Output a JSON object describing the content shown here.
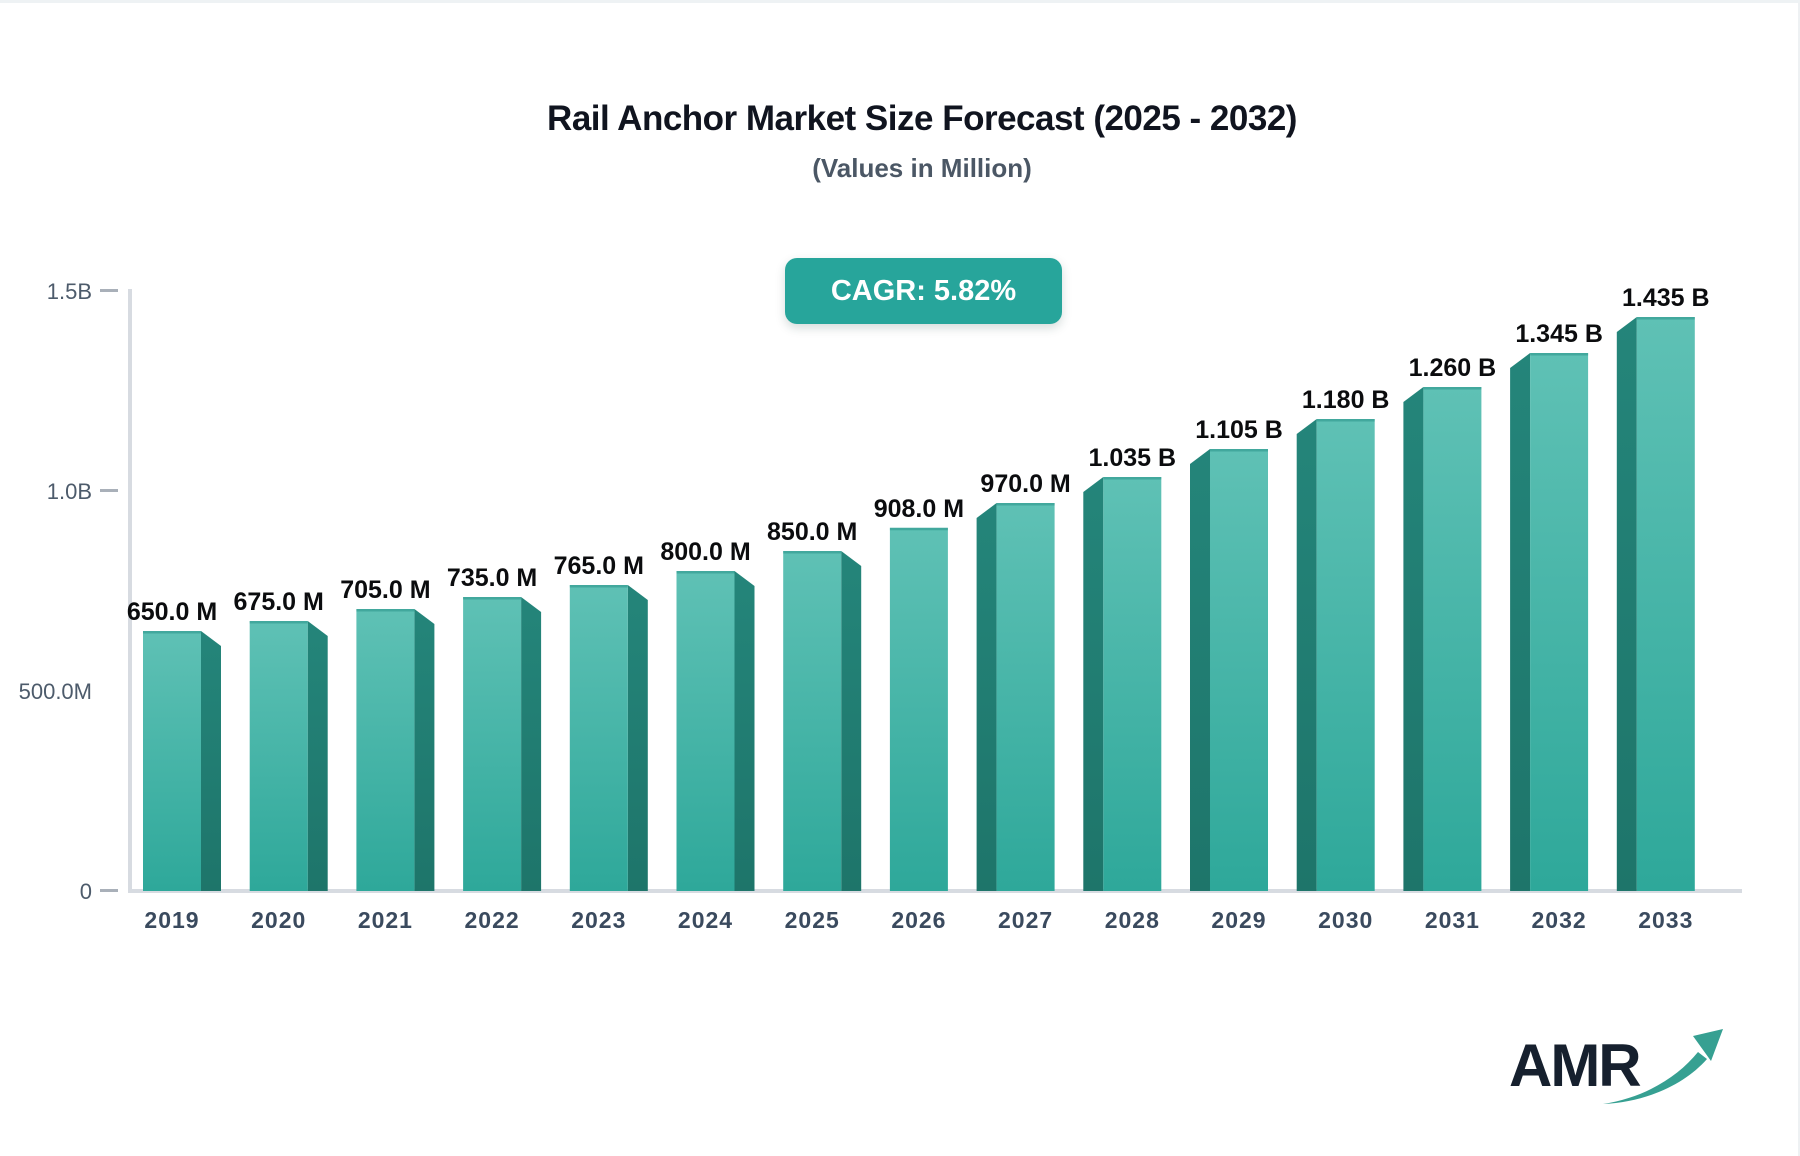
{
  "header": {
    "title": "Rail Anchor Market Size Forecast (2025 - 2032)",
    "subtitle": "(Values in Million)",
    "cagr_label": "CAGR: 5.82%"
  },
  "logo": {
    "text": "AMR"
  },
  "colors": {
    "bar_front_top": "#5fc1b5",
    "bar_front_bottom": "#2ea89a",
    "bar_side_top": "#24857a",
    "bar_side_bottom": "#1e756a",
    "bar_top_edge": "#2a9488",
    "badge_bg": "#27a59b",
    "axis_line": "#d7dbe1",
    "tick_dash": "#a9b0b9",
    "tick_text": "#4d5b6b",
    "year_text": "#3a4a5e",
    "value_text": "#0b0c0e",
    "logo_text": "#16202e",
    "logo_arrow": "#36a092"
  },
  "chart_data": {
    "type": "bar",
    "title": "Rail Anchor Market Size Forecast (2025 - 2032)",
    "subtitle": "(Values in Million)",
    "cagr_percent": 5.82,
    "categories": [
      "2019",
      "2020",
      "2021",
      "2022",
      "2023",
      "2024",
      "2025",
      "2026",
      "2027",
      "2028",
      "2029",
      "2030",
      "2031",
      "2032",
      "2033"
    ],
    "values_in_millions": [
      650,
      675,
      705,
      735,
      765,
      800,
      850,
      908,
      970,
      1035,
      1105,
      1180,
      1260,
      1345,
      1435
    ],
    "value_labels": [
      "650.0 M",
      "675.0 M",
      "705.0 M",
      "735.0 M",
      "765.0 M",
      "800.0 M",
      "850.0 M",
      "908.0 M",
      "970.0 M",
      "1.035 B",
      "1.105 B",
      "1.180 B",
      "1.260 B",
      "1.345 B",
      "1.435 B"
    ],
    "y_axis_ticks": [
      {
        "label": "1.5B",
        "value_millions": 1500,
        "dash": true
      },
      {
        "label": "1.0B",
        "value_millions": 1000,
        "dash": true
      },
      {
        "label": "500.0M",
        "value_millions": 500,
        "dash": false
      },
      {
        "label": "0",
        "value_millions": 0,
        "dash": true
      }
    ],
    "ylim_millions": [
      0,
      1500
    ],
    "grid": false,
    "legend": false
  }
}
